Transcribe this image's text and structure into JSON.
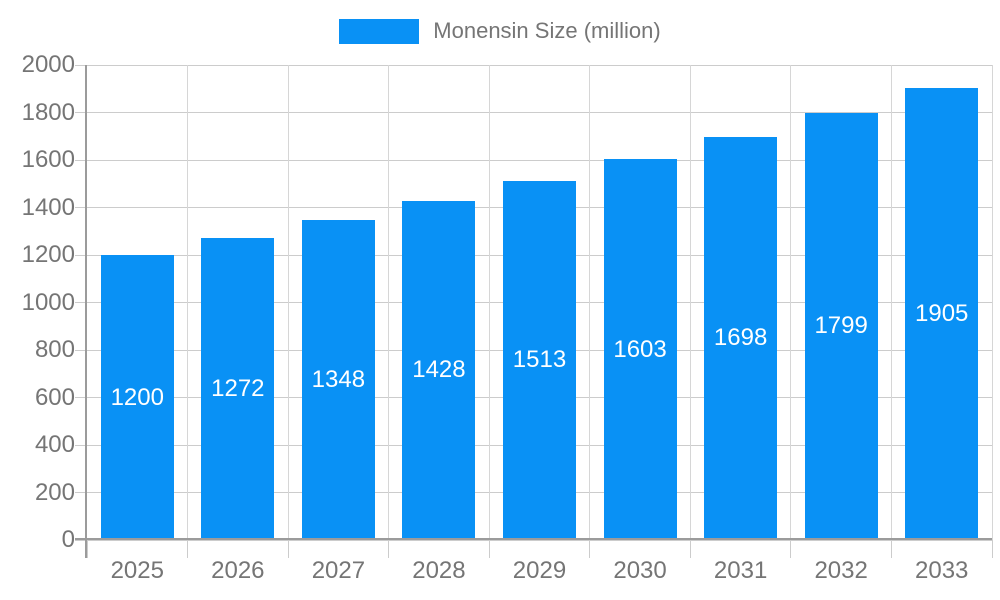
{
  "chart_data": {
    "type": "bar",
    "title": "",
    "legend_label": "Monensin Size (million)",
    "legend_position": "top",
    "categories": [
      "2025",
      "2026",
      "2027",
      "2028",
      "2029",
      "2030",
      "2031",
      "2032",
      "2033"
    ],
    "values": [
      1200,
      1272,
      1348,
      1428,
      1513,
      1603,
      1698,
      1799,
      1905
    ],
    "xlabel": "",
    "ylabel": "",
    "ylim": [
      0,
      2000
    ],
    "ytick_step": 200,
    "ytick_labels": [
      "0",
      "200",
      "400",
      "600",
      "800",
      "1000",
      "1200",
      "1400",
      "1600",
      "1800",
      "2000"
    ],
    "grid": "both",
    "value_label_position": "inside-center",
    "colors": {
      "bar": "#0991f5",
      "axis_line": "#9b9b9b",
      "gridline": "#cccccc",
      "tick_label": "#757575",
      "value_label": "#ffffff",
      "background": "#ffffff"
    }
  }
}
